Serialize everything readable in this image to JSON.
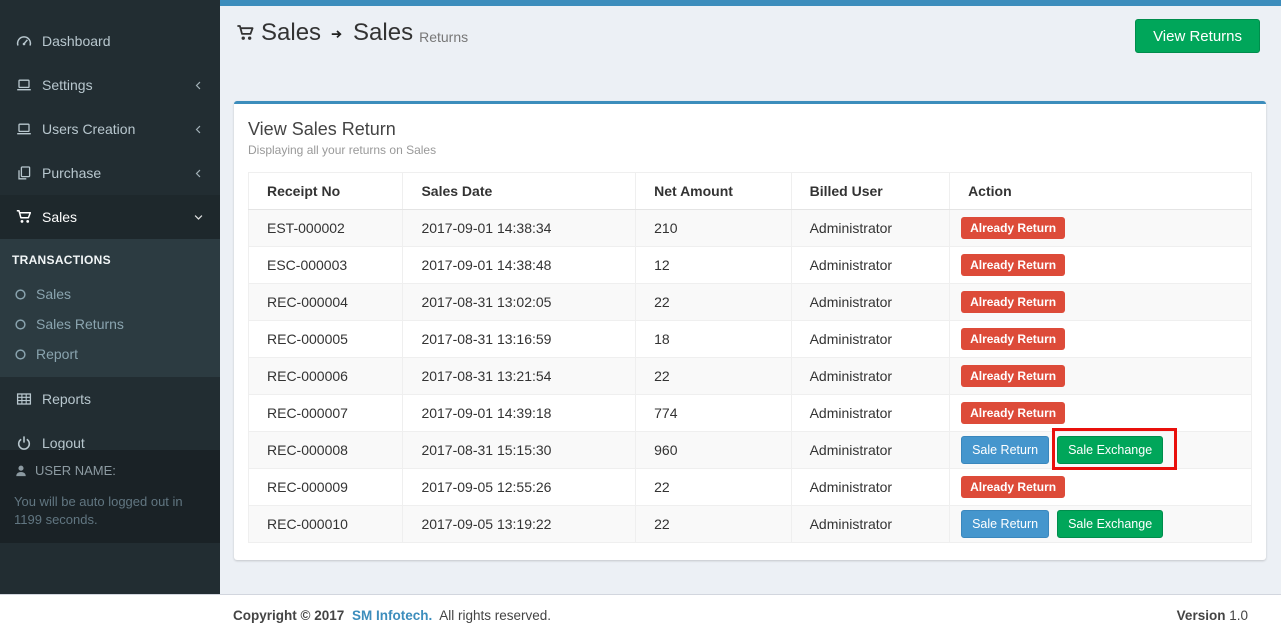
{
  "sidebar": {
    "items": [
      {
        "label": "Dashboard",
        "icon": "dashboard-icon",
        "state": "normal"
      },
      {
        "label": "Settings",
        "icon": "laptop-icon",
        "state": "collapsed"
      },
      {
        "label": "Users Creation",
        "icon": "laptop-icon",
        "state": "collapsed"
      },
      {
        "label": "Purchase",
        "icon": "copy-icon",
        "state": "collapsed"
      },
      {
        "label": "Sales",
        "icon": "cart-icon",
        "state": "expanded-active"
      }
    ],
    "section_label": "TRANSACTIONS",
    "sub_items": [
      "Sales",
      "Sales Returns",
      "Report"
    ],
    "items_lower": [
      {
        "label": "Reports",
        "icon": "table-icon"
      },
      {
        "label": "Logout",
        "icon": "power-icon"
      }
    ],
    "user_label": "USER NAME:",
    "auto_logout_note": "You will be auto logged out in 1199 seconds."
  },
  "header": {
    "crumb_primary": "Sales",
    "crumb_secondary": "Sales",
    "crumb_tertiary": "Returns",
    "view_returns_label": "View Returns"
  },
  "panel": {
    "title": "View Sales Return",
    "subtitle": "Displaying all your returns on Sales"
  },
  "table": {
    "headers": [
      "Receipt No",
      "Sales Date",
      "Net Amount",
      "Billed User",
      "Action"
    ],
    "rows": [
      {
        "receipt": "EST-000002",
        "date": "2017-09-01 14:38:34",
        "amount": "210",
        "user": "Administrator",
        "actions": [
          {
            "label": "Already Return",
            "type": "already"
          }
        ]
      },
      {
        "receipt": "ESC-000003",
        "date": "2017-09-01 14:38:48",
        "amount": "12",
        "user": "Administrator",
        "actions": [
          {
            "label": "Already Return",
            "type": "already"
          }
        ]
      },
      {
        "receipt": "REC-000004",
        "date": "2017-08-31 13:02:05",
        "amount": "22",
        "user": "Administrator",
        "actions": [
          {
            "label": "Already Return",
            "type": "already"
          }
        ]
      },
      {
        "receipt": "REC-000005",
        "date": "2017-08-31 13:16:59",
        "amount": "18",
        "user": "Administrator",
        "actions": [
          {
            "label": "Already Return",
            "type": "already"
          }
        ]
      },
      {
        "receipt": "REC-000006",
        "date": "2017-08-31 13:21:54",
        "amount": "22",
        "user": "Administrator",
        "actions": [
          {
            "label": "Already Return",
            "type": "already"
          }
        ]
      },
      {
        "receipt": "REC-000007",
        "date": "2017-09-01 14:39:18",
        "amount": "774",
        "user": "Administrator",
        "actions": [
          {
            "label": "Already Return",
            "type": "already"
          }
        ]
      },
      {
        "receipt": "REC-000008",
        "date": "2017-08-31 15:15:30",
        "amount": "960",
        "user": "Administrator",
        "actions": [
          {
            "label": "Sale Return",
            "type": "return"
          },
          {
            "label": "Sale Exchange",
            "type": "exchange",
            "highlight": true
          }
        ]
      },
      {
        "receipt": "REC-000009",
        "date": "2017-09-05 12:55:26",
        "amount": "22",
        "user": "Administrator",
        "actions": [
          {
            "label": "Already Return",
            "type": "already"
          }
        ]
      },
      {
        "receipt": "REC-000010",
        "date": "2017-09-05 13:19:22",
        "amount": "22",
        "user": "Administrator",
        "actions": [
          {
            "label": "Sale Return",
            "type": "return"
          },
          {
            "label": "Sale Exchange",
            "type": "exchange"
          }
        ]
      }
    ]
  },
  "footer": {
    "copyright_prefix": "Copyright © 2017",
    "brand": "SM Infotech.",
    "copyright_suffix": "All rights reserved.",
    "version_label": "Version",
    "version_value": "1.0"
  },
  "colors": {
    "accent_blue": "#3c8dbc",
    "sidebar_bg": "#222d32",
    "submenu_bg": "#2c3b41",
    "active_item_bg": "#1e282c",
    "content_bg": "#ecf0f5",
    "green_button": "#00a65a",
    "blue_button": "#4596cd",
    "red_badge": "#dd4b39",
    "highlight_red": "#e9100c"
  }
}
